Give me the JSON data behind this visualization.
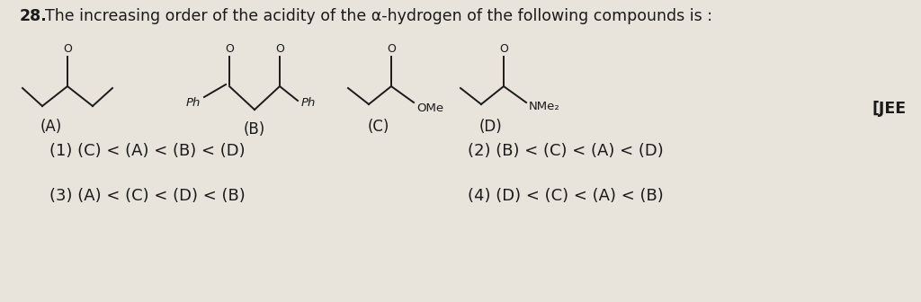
{
  "title_number": "28.",
  "title_text": "  The increasing order of the acidity of the α-hydrogen of the following compounds is :",
  "bracket_text": "[JEE",
  "A_label": "(A)",
  "B_label": "(B)",
  "C_label": "(C)",
  "D_label": "(D)",
  "options": [
    "(1) (C) < (A) < (B) < (D)",
    "(3) (A) < (C) < (D) < (B)"
  ],
  "options_right": [
    "(2) (B) < (C) < (A) < (D)",
    "(4) (D) < (C) < (A) < (B)"
  ],
  "bg_color": "#e8e4dc",
  "text_color": "#1a1a1a",
  "title_fontsize": 12.5,
  "option_fontsize": 13.0,
  "label_fontsize": 12.0,
  "struct_fontsize": 10.5
}
